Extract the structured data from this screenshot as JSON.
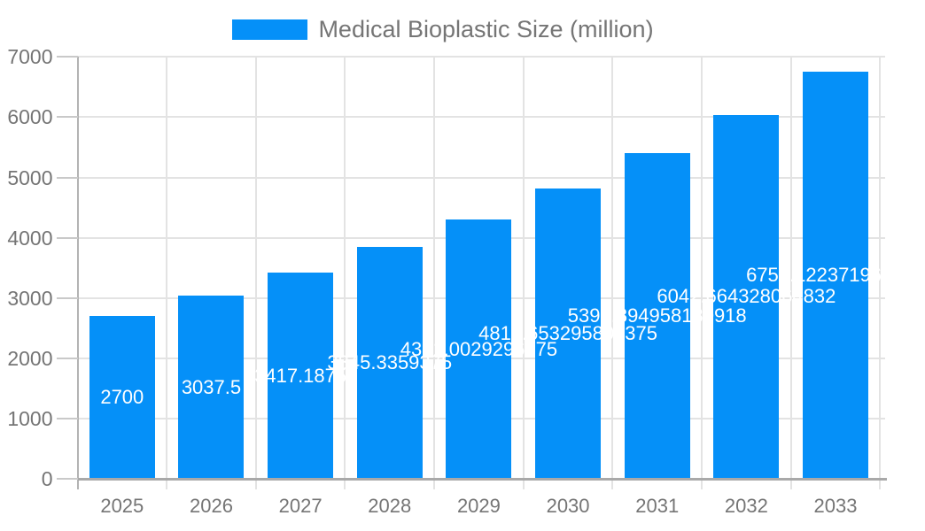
{
  "chart_data": {
    "type": "bar",
    "title": "Medical Bioplastic Size (million)",
    "legend": {
      "label": "Medical Bioplastic Size (million)",
      "position": "top-center"
    },
    "categories": [
      "2025",
      "2026",
      "2027",
      "2028",
      "2029",
      "2030",
      "2031",
      "2032",
      "2033"
    ],
    "series": [
      {
        "name": "Medical Bioplastic Size (million)",
        "values": [
          2700,
          3037.5,
          3417.1875,
          3845.3359375,
          4301.0029296875,
          4818.653295804375,
          5397.894958130918,
          6042.664328064832,
          6759.122371964832
        ]
      }
    ],
    "bar_value_labels": [
      "2700",
      "3037.5",
      "3417.1875",
      "3845.3359375",
      "4301.0029296875",
      "4818.653295804375",
      "5397.894958130918",
      "6042.664328064832",
      "6759.122371964832"
    ],
    "xlabel": "",
    "ylabel": "",
    "ylim": [
      0,
      7000
    ],
    "yticks": [
      0,
      1000,
      2000,
      3000,
      4000,
      5000,
      6000,
      7000
    ],
    "grid": true,
    "colors": {
      "bar": "#0590f8",
      "axis_text": "#757575",
      "legend_text": "#757575",
      "gridline": "#e3e3e3",
      "tick": "#c9c9c9",
      "baseline": "#a9a9a9",
      "y_axis_line": "#b3b3b3",
      "bar_label_text": "#ffffff",
      "background": "#ffffff"
    }
  }
}
